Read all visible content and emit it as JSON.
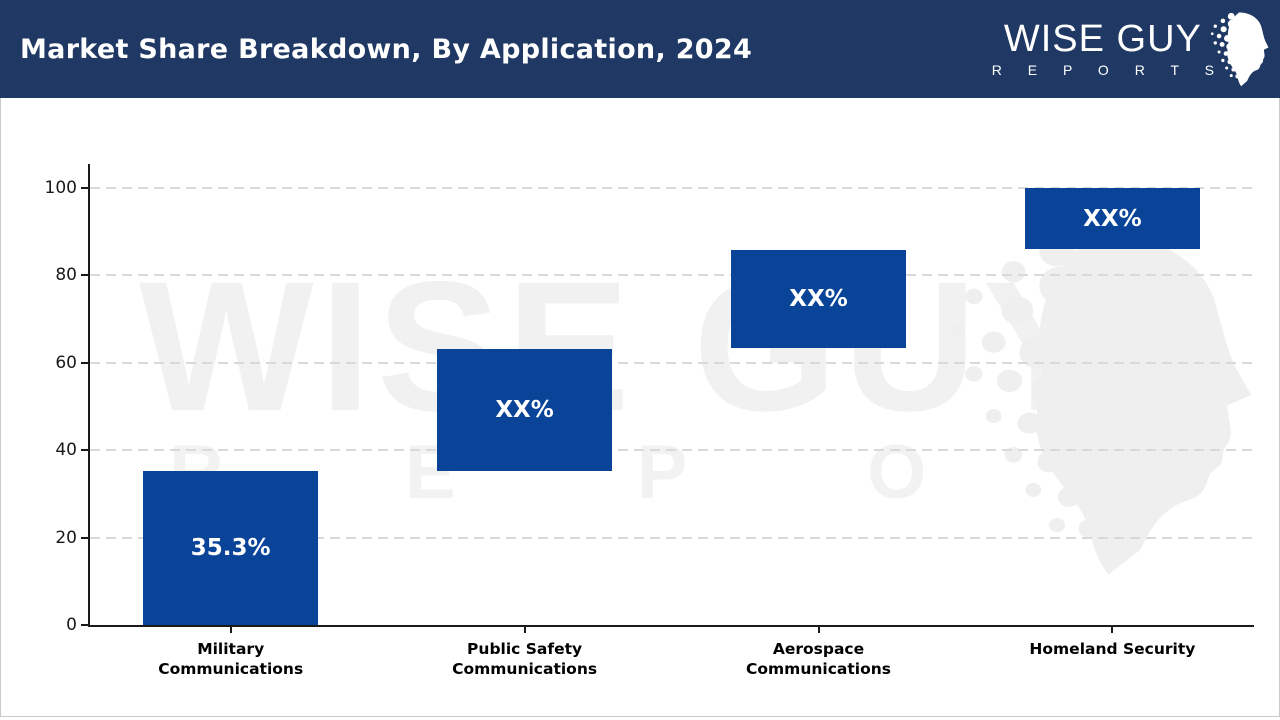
{
  "header": {
    "title": "Market Share Breakdown, By Application, 2024",
    "logo": {
      "line1": "WISE GUY",
      "line2": "R E P O R T S"
    }
  },
  "watermark": {
    "line1": "WISE GUY",
    "line2": "R E P O R T S"
  },
  "chart_data": {
    "type": "bar",
    "variant": "floating-stacked-percentage",
    "title": "Market Share Breakdown, By Application, 2024",
    "xlabel": "",
    "ylabel": "",
    "ylim": [
      0,
      105.5
    ],
    "yticks": [
      0,
      20,
      40,
      60,
      80,
      100
    ],
    "ytick_labels": [
      "0",
      "20",
      "40",
      "60",
      "80",
      "100"
    ],
    "grid": "horizontal-dashed",
    "legend": "none",
    "categories": [
      "Military\nCommunications",
      "Public Safety\nCommunications",
      "Aerospace\nCommunications",
      "Homeland Security"
    ],
    "bars": [
      {
        "category": "Military Communications",
        "from": 0,
        "to": 35.3,
        "label": "35.3%"
      },
      {
        "category": "Public Safety Communications",
        "from": 35.3,
        "to": 63.2,
        "label": "XX%"
      },
      {
        "category": "Aerospace Communications",
        "from": 63.3,
        "to": 85.8,
        "label": "XX%"
      },
      {
        "category": "Homeland Security",
        "from": 86.0,
        "to": 100,
        "label": "XX%"
      }
    ],
    "colors": {
      "bar": "#0A4499",
      "bar_label": "#FFFFFF",
      "grid": "#D9D9D9",
      "spine": "#1A1A1A",
      "tick_label": "#1A1A1A",
      "category_label": "#000000"
    }
  },
  "colors": {
    "header_bg": "#1F3864",
    "panel_bg": "#FFFFFF",
    "panel_border": "#C9C9C9",
    "watermark": "#F0F0F0"
  }
}
